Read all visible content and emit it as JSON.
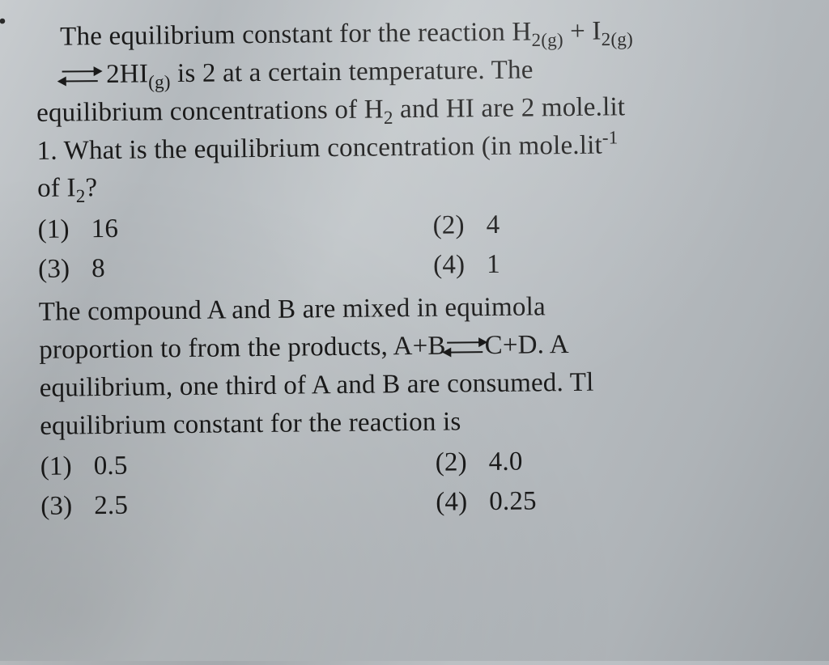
{
  "colors": {
    "text": "#1a1a1a",
    "bg_gradient_stops": [
      "#c8cccf",
      "#b4b9bd",
      "#c2c7ca",
      "#b8bdc1",
      "#aeb3b7",
      "#9ea3a7"
    ]
  },
  "typography": {
    "font_family": "Georgia / Times (serif)",
    "body_size_pt": 24,
    "sub_scale": 0.7
  },
  "q1": {
    "line1_pre": "The equilibrium constant for the reaction H",
    "h2g_sub": "2(g)",
    "line1_mid": " + I",
    "i2g_sub": "2(g)",
    "line2_pre": " 2HI",
    "hi_sub": "(g)",
    "line2_rest": " is 2 at a certain temperature. The",
    "line3_pre": "equilibrium concentrations of H",
    "line3_sub": "2",
    "line3_rest": " and HI are 2 mole.lit",
    "line4_pre": "1",
    "line4_rest": ". What is the equilibrium concentration (in mole.lit",
    "line4_sup": "-1",
    "line5_pre": "of I",
    "line5_sub": "2",
    "line5_rest": "?",
    "options": {
      "labels": [
        "(1)",
        "(2)",
        "(3)",
        "(4)"
      ],
      "values": [
        "16",
        "4",
        "8",
        "1"
      ]
    }
  },
  "q2": {
    "line1": "The compound A and B are mixed in equimola",
    "line2_pre": "proportion to from the products, A+B",
    "line2_post": "C+D. A",
    "line3": "equilibrium, one third of A and B are consumed. Tl",
    "line4": "equilibrium constant for the reaction is",
    "options": {
      "labels": [
        "(1)",
        "(2)",
        "(3)",
        "(4)"
      ],
      "values": [
        "0.5",
        "4.0",
        "2.5",
        "0.25"
      ]
    }
  },
  "decor": {
    "edge_dot": "•"
  }
}
